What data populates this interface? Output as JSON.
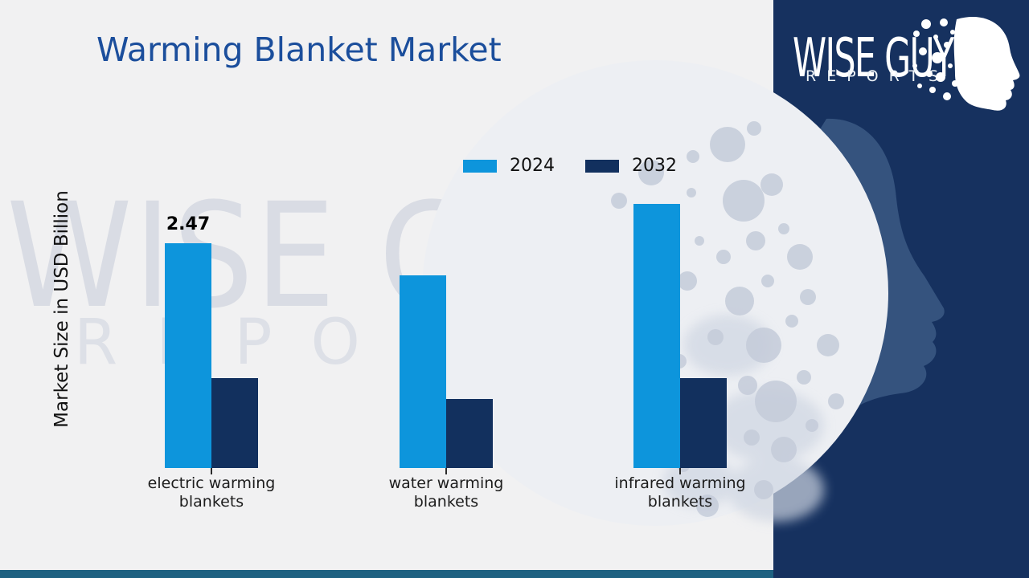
{
  "brand": {
    "line1": "WISE GUY",
    "line2": "REPORTS"
  },
  "chart_data": {
    "type": "bar",
    "title": "Warming Blanket Market",
    "ylabel": "Market Size in USD Billion",
    "xlabel": "",
    "categories": [
      "electric warming blankets",
      "water warming blankets",
      "infrared warming blankets"
    ],
    "series": [
      {
        "name": "2024",
        "color": "#0d95dc",
        "values": [
          2.47,
          2.12,
          2.9
        ]
      },
      {
        "name": "2032",
        "color": "#12305e",
        "values": [
          0.99,
          0.76,
          0.99
        ]
      }
    ],
    "bar_labels": [
      {
        "series_index": 0,
        "category_index": 0,
        "text": "2.47"
      }
    ],
    "ylim": [
      0,
      3.2
    ],
    "grid": false,
    "legend_position": "top-center"
  },
  "colors": {
    "title_blue": "#1b4e9c",
    "panel_navy": "#16315f",
    "accent_teal": "#1e6181",
    "bar_2024": "#0d95dc",
    "bar_2032": "#12305e"
  }
}
